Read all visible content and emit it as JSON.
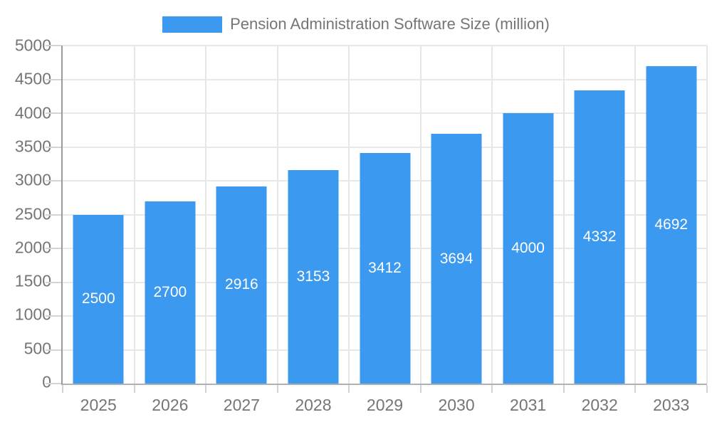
{
  "legend": {
    "label": "Pension Administration Software Size (million)",
    "swatch_color": "#3B99F0"
  },
  "chart_data": {
    "type": "bar",
    "title": "Pension Administration Software Size (million)",
    "legend_position": "top",
    "categories": [
      "2025",
      "2026",
      "2027",
      "2028",
      "2029",
      "2030",
      "2031",
      "2032",
      "2033"
    ],
    "values": [
      2500,
      2700,
      2916,
      3153,
      3412,
      3694,
      4000,
      4332,
      4692
    ],
    "series_name": "Pension Administration Software Size (million)",
    "xlabel": "",
    "ylabel": "",
    "ylim": [
      0,
      5000
    ],
    "yticks": [
      0,
      500,
      1000,
      1500,
      2000,
      2500,
      3000,
      3500,
      4000,
      4500,
      5000
    ],
    "grid": "horizontal-and-vertical",
    "bar_color": "#3B99F0",
    "bar_label_color": "#ffffff",
    "axis_text_color": "#757575",
    "gridline_color": "#e8e8e8"
  }
}
